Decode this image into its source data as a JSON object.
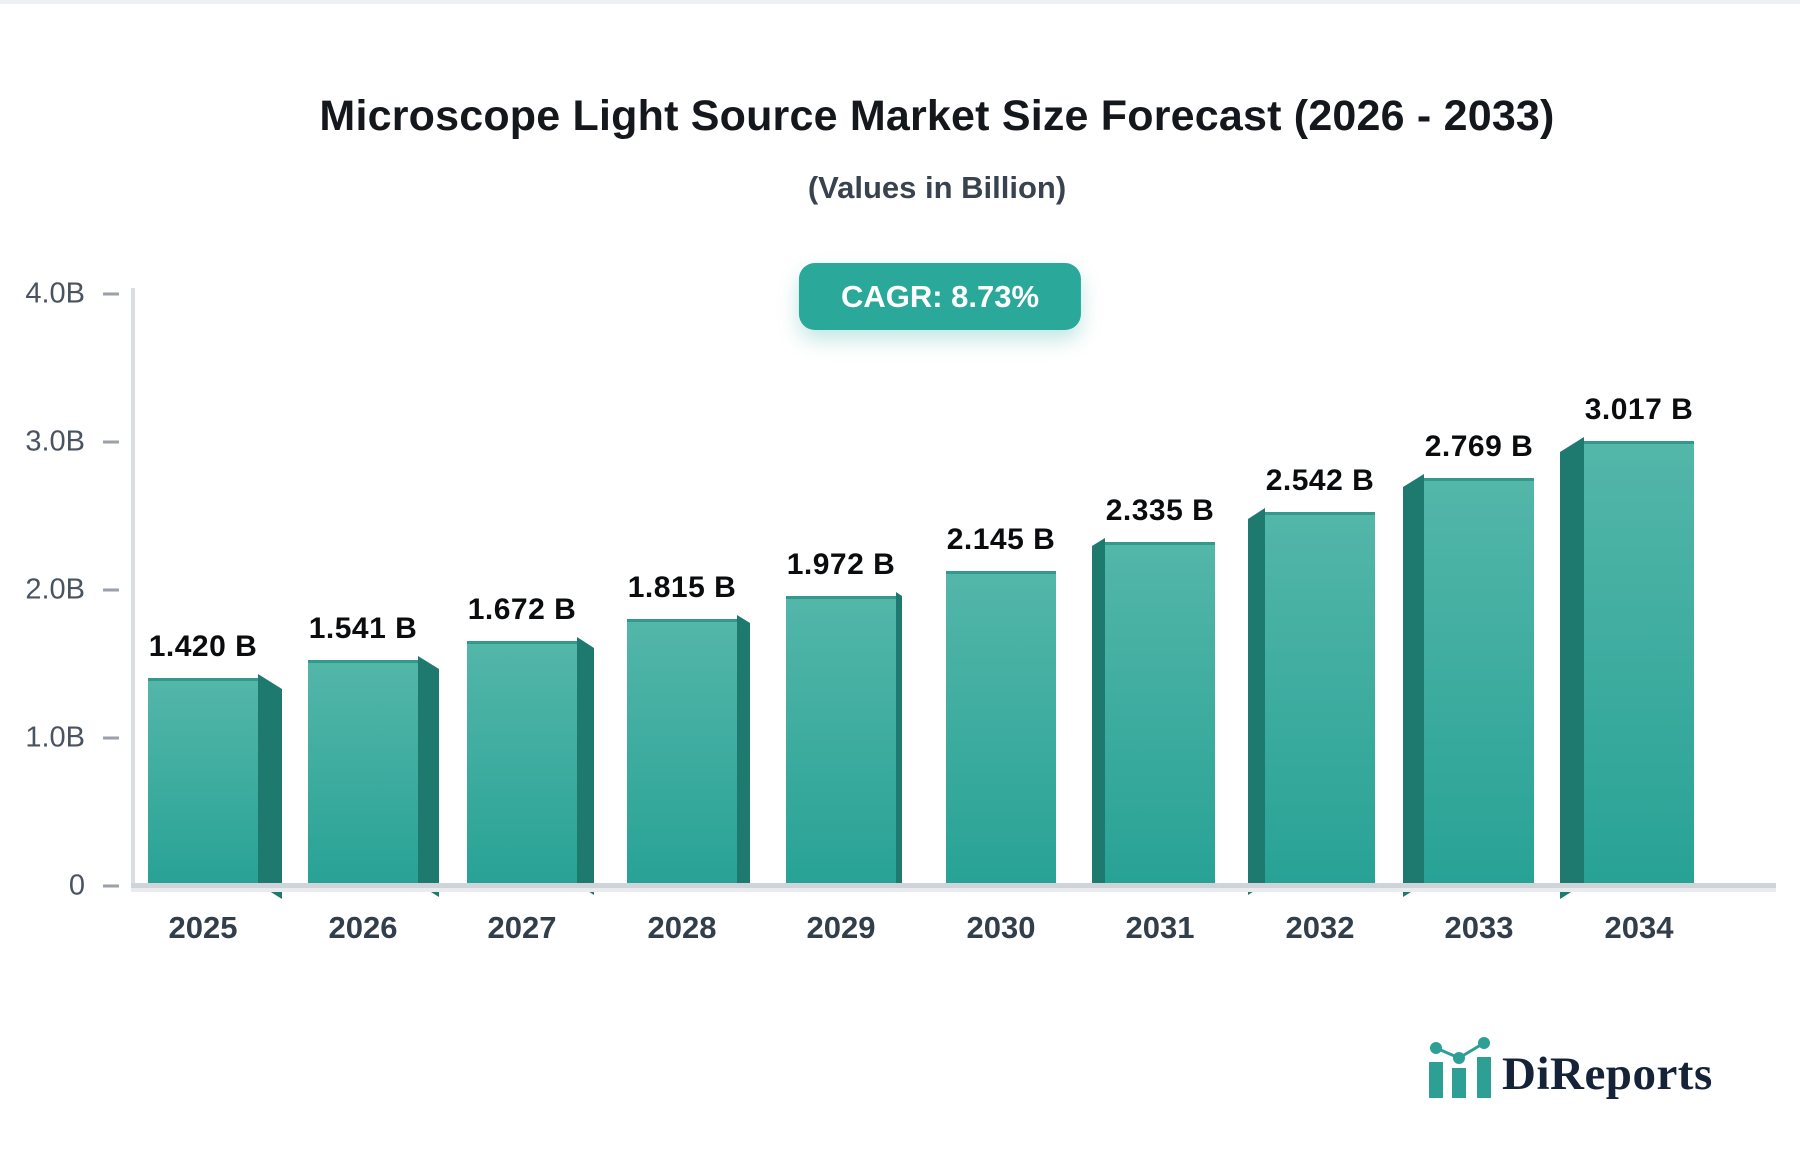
{
  "title": "Microscope Light Source Market Size Forecast (2026 - 2033)",
  "subtitle": "(Values in Billion)",
  "badge": {
    "label": "CAGR: 8.73%",
    "bg": "#2aa89a"
  },
  "chart_data": {
    "type": "bar",
    "title": "Microscope Light Source Market Size Forecast (2026 - 2033)",
    "subtitle": "(Values in Billion)",
    "cagr_percent": 8.73,
    "unit": "Billion",
    "categories": [
      "2025",
      "2026",
      "2027",
      "2028",
      "2029",
      "2030",
      "2031",
      "2032",
      "2033",
      "2034"
    ],
    "values": [
      1.42,
      1.541,
      1.672,
      1.815,
      1.972,
      2.145,
      2.335,
      2.542,
      2.769,
      3.017
    ],
    "value_labels": [
      "1.420 B",
      "1.541 B",
      "1.672 B",
      "1.815 B",
      "1.972 B",
      "2.145 B",
      "2.335 B",
      "2.542 B",
      "2.769 B",
      "3.017 B"
    ],
    "xlabel": "",
    "ylabel": "",
    "ylim": [
      0,
      4.0
    ],
    "yticks": [
      {
        "label": "4.0B",
        "value": 4.0
      },
      {
        "label": "3.0B",
        "value": 3.0
      },
      {
        "label": "2.0B",
        "value": 2.0
      },
      {
        "label": "1.0B",
        "value": 1.0
      },
      {
        "label": "0",
        "value": 0.0
      }
    ],
    "grid": false,
    "legend": false,
    "colors": {
      "bar_top": "#53b6a9",
      "bar_bottom": "#27a295",
      "bar_side": "#1e7a6e",
      "badge_bg": "#2aa89a",
      "axis_line": "#dadde2",
      "tick": "#9aa1aa"
    }
  },
  "logo": {
    "text": "DiReports",
    "icon": "mini-bar-chart-icon"
  }
}
